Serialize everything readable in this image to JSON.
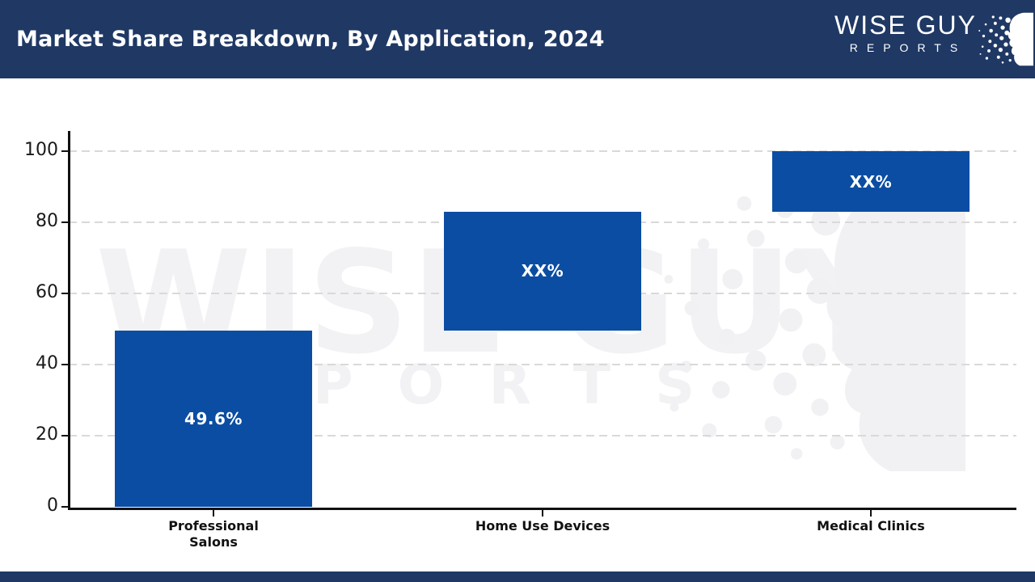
{
  "header": {
    "title": "Market Share Breakdown, By Application, 2024",
    "bg_color": "#1f3864",
    "logo": {
      "line1": "WISE GUY",
      "line2": "REPORTS"
    }
  },
  "watermark": {
    "line1": "WISE GUY",
    "line2": "REPORTS"
  },
  "footer": {
    "bg_color": "#1f3864"
  },
  "chart_data": {
    "type": "bar",
    "subtype": "floating-segment-bars",
    "title": "Market Share Breakdown, By Application, 2024",
    "categories": [
      "Professional\nSalons",
      "Home Use Devices",
      "Medical Clinics"
    ],
    "segments": [
      {
        "category": "Professional Salons",
        "start": 0,
        "end": 49.6,
        "label": "49.6%"
      },
      {
        "category": "Home Use Devices",
        "start": 49.6,
        "end": 82.9,
        "label": "XX%"
      },
      {
        "category": "Medical Clinics",
        "start": 82.9,
        "end": 100,
        "label": "XX%"
      }
    ],
    "ylim": [
      0,
      100
    ],
    "yticks": [
      0,
      20,
      40,
      60,
      80,
      100
    ],
    "xlabel": "",
    "ylabel": "",
    "grid": "horizontal-dashed",
    "legend": "none",
    "bar_color": "#0b4da2",
    "bar_label_color": "#ffffff",
    "axis_color": "#111111",
    "gridline_color": "#d9d9d9"
  }
}
